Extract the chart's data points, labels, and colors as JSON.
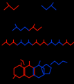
{
  "bg_color": "#000000",
  "red": "#dd1100",
  "blue": "#0033cc",
  "lw": 0.8,
  "fig_w": 1.07,
  "fig_h": 1.21,
  "dpi": 100
}
